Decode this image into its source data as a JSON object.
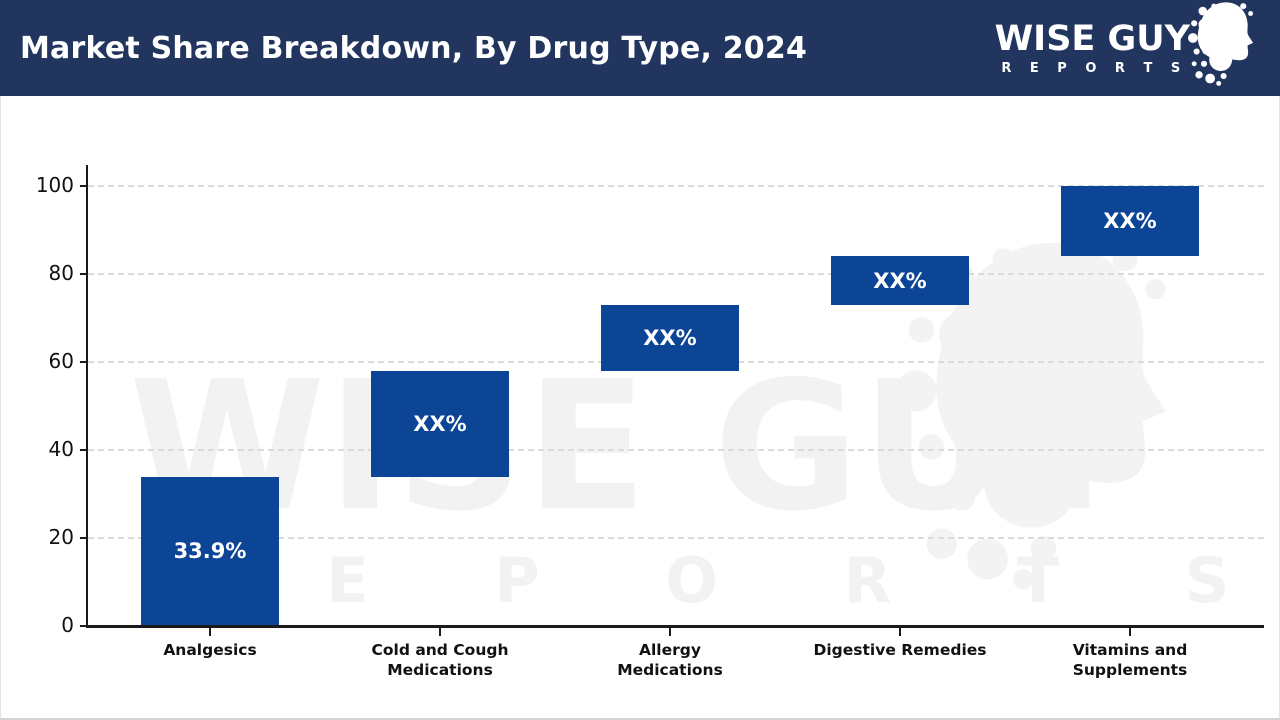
{
  "header": {
    "title": "Market Share Breakdown, By Drug Type, 2024",
    "brand_line1": "WISE GUY",
    "brand_line2": "R E P O R T S"
  },
  "watermark": {
    "line1": "WISE GUY",
    "line2": "R E P O R T S",
    "head_icon": "head-profile-dots"
  },
  "colors": {
    "header_bg": "#21355f",
    "bar_fill": "#0d4596",
    "bar_label_text": "#ffffff",
    "gridline": "#dadada",
    "axis": "#1a1a1a",
    "watermark": "#f2f2f2"
  },
  "chart_data": {
    "type": "bar",
    "subtype": "waterfall",
    "title": "Market Share Breakdown, By Drug Type, 2024",
    "xlabel": "",
    "ylabel": "",
    "ylim": [
      0,
      104
    ],
    "yticks": [
      0,
      20,
      40,
      60,
      80,
      100
    ],
    "grid": "horizontal-dashed",
    "legend": "none",
    "categories": [
      "Analgesics",
      "Cold and Cough\nMedications",
      "Allergy\nMedications",
      "Digestive Remedies",
      "Vitamins and\nSupplements"
    ],
    "segments": [
      {
        "category": "Analgesics",
        "start": 0,
        "end": 33.9,
        "value": 33.9,
        "label": "33.9%"
      },
      {
        "category": "Cold and Cough Medications",
        "start": 33.9,
        "end": 57.9,
        "value": 24.0,
        "label": "XX%"
      },
      {
        "category": "Allergy Medications",
        "start": 57.9,
        "end": 72.9,
        "value": 15.0,
        "label": "XX%"
      },
      {
        "category": "Digestive Remedies",
        "start": 72.9,
        "end": 84.0,
        "value": 11.1,
        "label": "XX%"
      },
      {
        "category": "Vitamins and Supplements",
        "start": 84.0,
        "end": 100.0,
        "value": 16.0,
        "label": "XX%"
      }
    ]
  }
}
